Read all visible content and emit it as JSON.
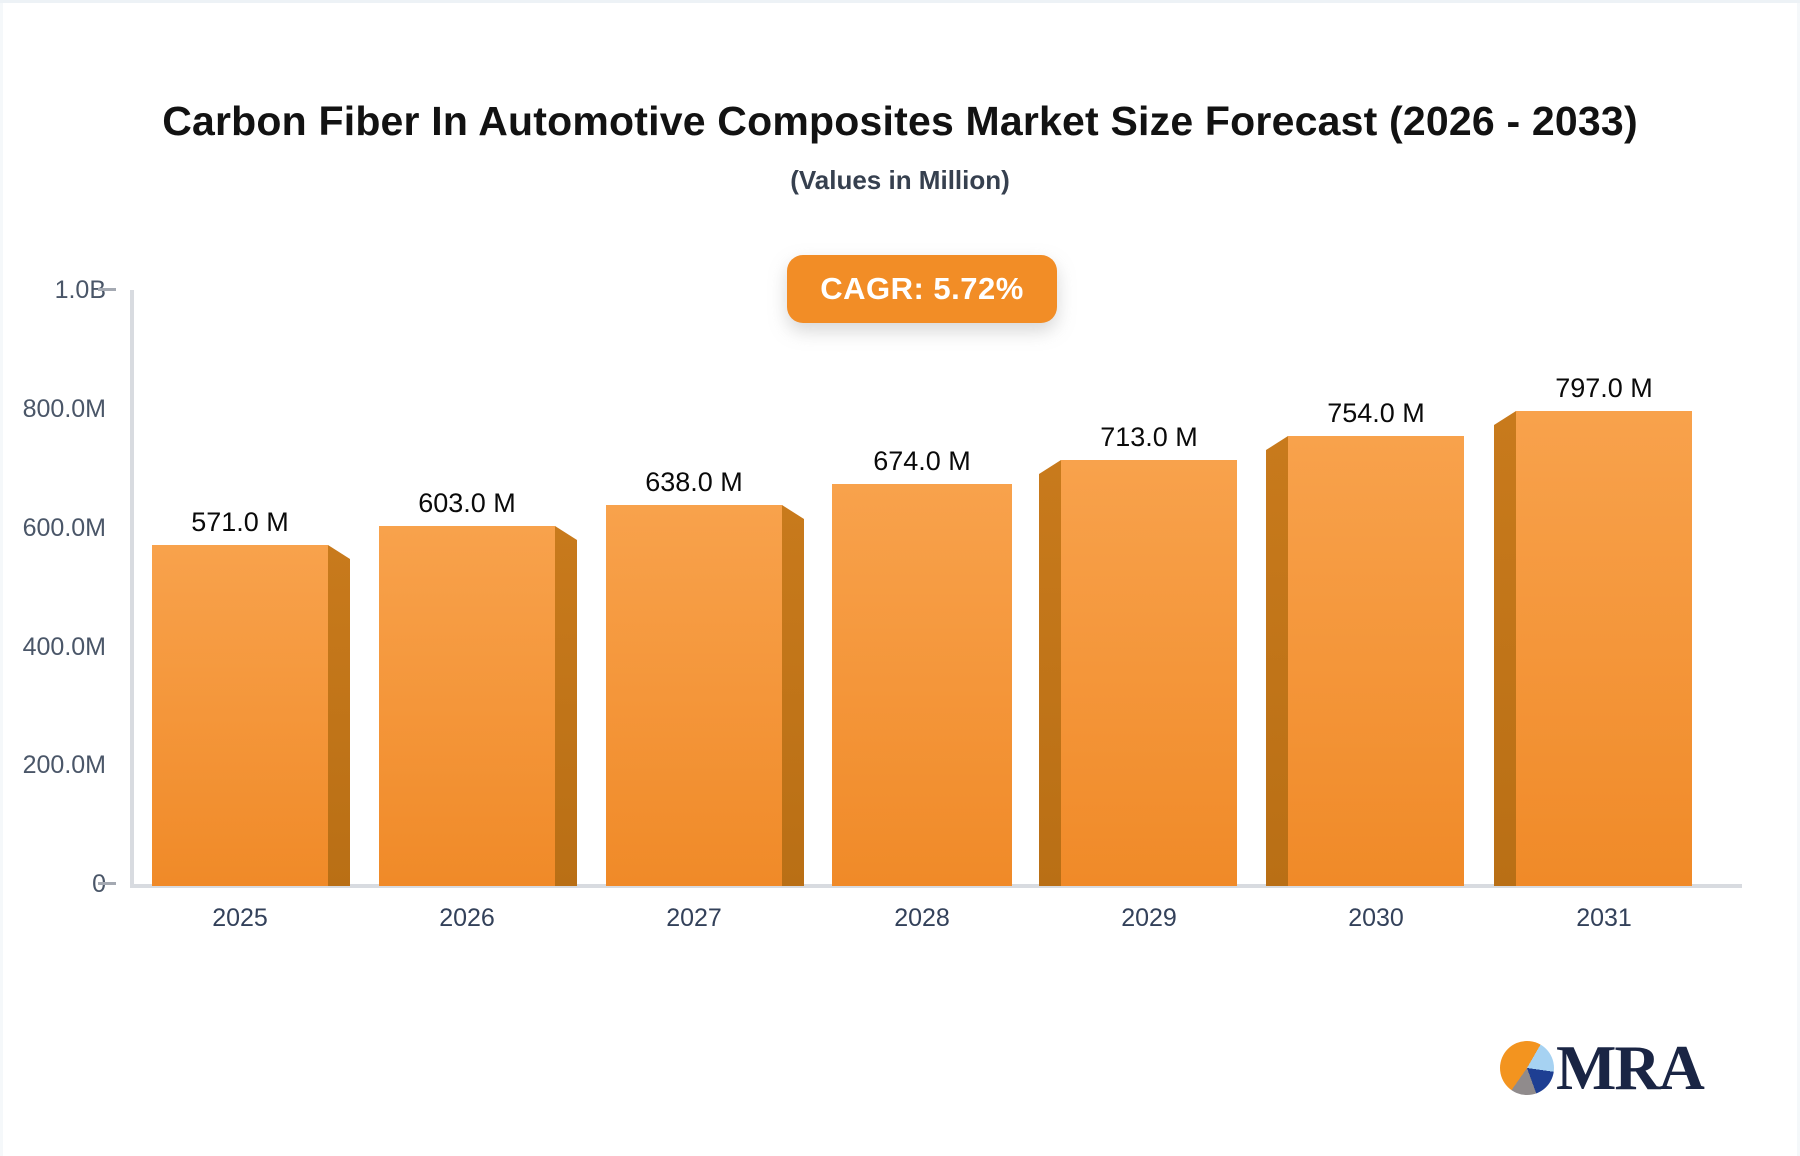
{
  "header": {
    "title": "Carbon Fiber In Automotive Composites Market Size Forecast (2026 - 2033)",
    "subtitle": "(Values in Million)"
  },
  "badge": {
    "label": "CAGR: 5.72%",
    "bg_color": "#F28D26",
    "text_color": "#FFFFFF"
  },
  "chart_data": {
    "type": "bar",
    "title": "Carbon Fiber In Automotive Composites Market Size Forecast (2026 - 2033)",
    "subtitle": "(Values in Million)",
    "cagr_percent": 5.72,
    "categories": [
      "2025",
      "2026",
      "2027",
      "2028",
      "2029",
      "2030",
      "2031"
    ],
    "values_millions": [
      571,
      603,
      638,
      674,
      713,
      754,
      797
    ],
    "value_labels": [
      "571.0 M",
      "603.0 M",
      "638.0 M",
      "674.0 M",
      "713.0 M",
      "754.0 M",
      "797.0 M"
    ],
    "y_ticks": [
      "1.0B",
      "800.0M",
      "600.0M",
      "400.0M",
      "200.0M",
      "0"
    ],
    "ylim_millions": [
      0,
      1000
    ],
    "grid": false,
    "legend": null,
    "bar_colors": {
      "face_top": "#F8A24C",
      "face_bottom": "#F08A28",
      "side": "#C1751B"
    },
    "axis_color": "#D8DBE0"
  },
  "logo": {
    "text": "MRA",
    "icon": "pie-chart-logo-icon",
    "text_color": "#1A2544",
    "pie_colors": [
      "#F3941F",
      "#A6D2F2",
      "#1E3F93",
      "#908B8C"
    ]
  }
}
